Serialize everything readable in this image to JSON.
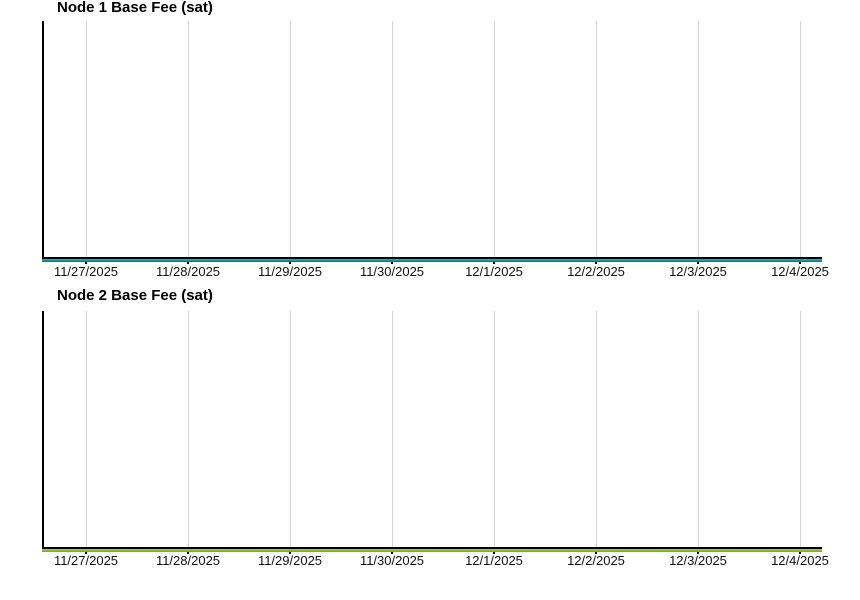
{
  "page": {
    "background_color": "#ffffff",
    "axis_color": "#000000",
    "gridline_color": "#d5d5d5",
    "tick_label_color": "#111111",
    "title_color": "#000000"
  },
  "chart_data": [
    {
      "type": "line",
      "title": "Node 1 Base Fee (sat)",
      "categories": [
        "11/27/2025",
        "11/28/2025",
        "11/29/2025",
        "11/30/2025",
        "12/1/2025",
        "12/2/2025",
        "12/3/2025",
        "12/4/2025"
      ],
      "values": [
        0,
        0,
        0,
        0,
        0,
        0,
        0,
        0
      ],
      "xlabel": "",
      "ylabel": "",
      "y_axis_labels": "none",
      "grid": "vertical-gridlines-only",
      "legend": "none",
      "series_color": "#2bb5c6",
      "series_color_dark": "#0d6e7a"
    },
    {
      "type": "line",
      "title": "Node 2 Base Fee (sat)",
      "categories": [
        "11/27/2025",
        "11/28/2025",
        "11/29/2025",
        "11/30/2025",
        "12/1/2025",
        "12/2/2025",
        "12/3/2025",
        "12/4/2025"
      ],
      "values": [
        0,
        0,
        0,
        0,
        0,
        0,
        0,
        0
      ],
      "xlabel": "",
      "ylabel": "",
      "y_axis_labels": "none",
      "grid": "vertical-gridlines-only",
      "legend": "none",
      "series_color": "#a6cd45",
      "series_color_dark": "#7da32f"
    }
  ]
}
